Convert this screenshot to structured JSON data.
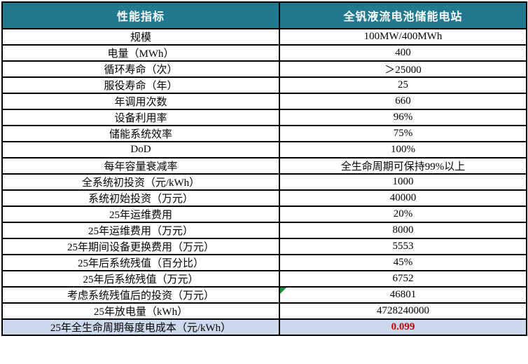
{
  "table": {
    "header": {
      "col1": "性能指标",
      "col2": "全钒液流电池储能电站"
    },
    "rows": [
      {
        "label": "规模",
        "value": "100MW/400MWh"
      },
      {
        "label": "电量（MWh）",
        "value": "400"
      },
      {
        "label": "循环寿命（次）",
        "value": "＞25000"
      },
      {
        "label": "服役寿命（年）",
        "value": "25"
      },
      {
        "label": "年调用次数",
        "value": "660"
      },
      {
        "label": "设备利用率",
        "value": "96%"
      },
      {
        "label": "储能系统效率",
        "value": "75%"
      },
      {
        "label": "DoD",
        "value": "100%"
      },
      {
        "label": "每年容量衰减率",
        "value": "全生命周期可保持99%以上"
      },
      {
        "label": "全系统初投资（元/kWh）",
        "value": "1000"
      },
      {
        "label": "系统初始投资（万元）",
        "value": "40000"
      },
      {
        "label": "25年运维费用",
        "value": "20%"
      },
      {
        "label": "25年运维费用（万元）",
        "value": "8000"
      },
      {
        "label": "25年期间设备更换费用（万元）",
        "value": "5553"
      },
      {
        "label": "25年后系统残值（百分比）",
        "value": "45%"
      },
      {
        "label": "25年后系统残值（万元）",
        "value": "6752"
      },
      {
        "label": "考虑系统残值后的投资（万元）",
        "value": "46801",
        "marker": "green-corner-triangle"
      },
      {
        "label": "25年放电量（kWh）",
        "value": "4728240000"
      },
      {
        "label": "25年全生命周期每度电成本（元/kWh）",
        "value": "0.099",
        "highlight": true
      }
    ],
    "colors": {
      "header_bg": "#21798F",
      "header_text": "#FFFFFF",
      "highlight_row_bg": "#CDDAED",
      "highlight_value_color": "#C00000",
      "border_color": "#000000",
      "marker_green": "#1E8E3E"
    }
  }
}
